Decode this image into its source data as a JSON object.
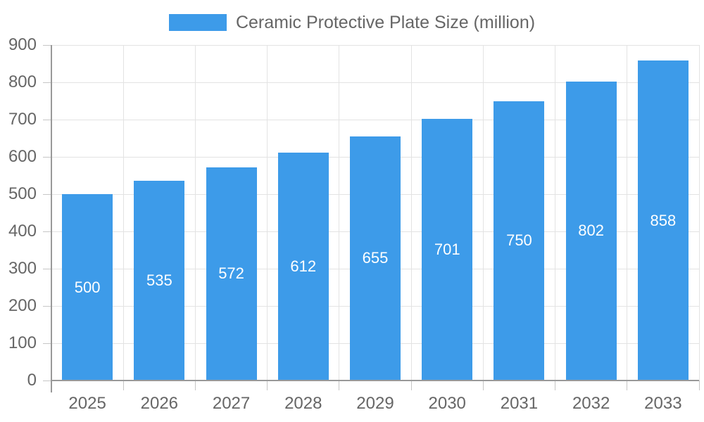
{
  "chart_data": {
    "type": "bar",
    "title": "Ceramic Protective Plate Size (million)",
    "categories": [
      "2025",
      "2026",
      "2027",
      "2028",
      "2029",
      "2030",
      "2031",
      "2032",
      "2033"
    ],
    "values": [
      500,
      535,
      572,
      612,
      655,
      701,
      750,
      802,
      858
    ],
    "xlabel": "",
    "ylabel": "",
    "ylim": [
      0,
      900
    ],
    "ytick_step": 100,
    "grid": true,
    "legend_position": "top-center",
    "colors": {
      "bar": "#3D9BE9",
      "value_label": "#FFFFFF",
      "axis": "#999999",
      "grid": "#E3E3E3",
      "tick": "#C6C6C6",
      "text": "#666666",
      "background": "#FFFFFF"
    }
  }
}
